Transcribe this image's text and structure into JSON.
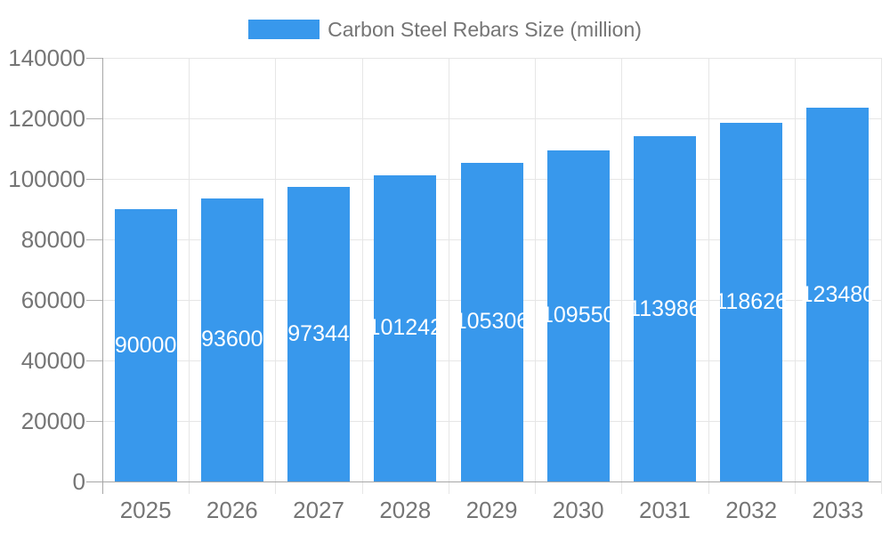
{
  "chart_data": {
    "type": "bar",
    "title": "Carbon Steel Rebars Size (million)",
    "legend_label": "Carbon Steel Rebars Size (million)",
    "legend_position": "top",
    "categories": [
      "2025",
      "2026",
      "2027",
      "2028",
      "2029",
      "2030",
      "2031",
      "2032",
      "2033"
    ],
    "series": [
      {
        "name": "Carbon Steel Rebars Size (million)",
        "values": [
          90000,
          93600,
          97344,
          101242,
          105306,
          109550,
          113986,
          118626,
          123480
        ]
      }
    ],
    "bar_labels": [
      "90000",
      "93600",
      "97344",
      "101242",
      "105306",
      "109550",
      "113986",
      "118626",
      "123480"
    ],
    "xlabel": "",
    "ylabel": "",
    "ylim": [
      0,
      140000
    ],
    "ytick_step": 20000,
    "ytick_labels": [
      "0",
      "20000",
      "40000",
      "60000",
      "80000",
      "100000",
      "120000",
      "140000"
    ],
    "grid": true,
    "colors": {
      "bar": "#3898EC",
      "bar_label": "#FFFFFF",
      "axis_text": "#757575",
      "grid_line": "#E6E6E6",
      "axis_line": "#A6A6A6",
      "tick": "#B3B3B3",
      "background": "#FFFFFF"
    }
  }
}
